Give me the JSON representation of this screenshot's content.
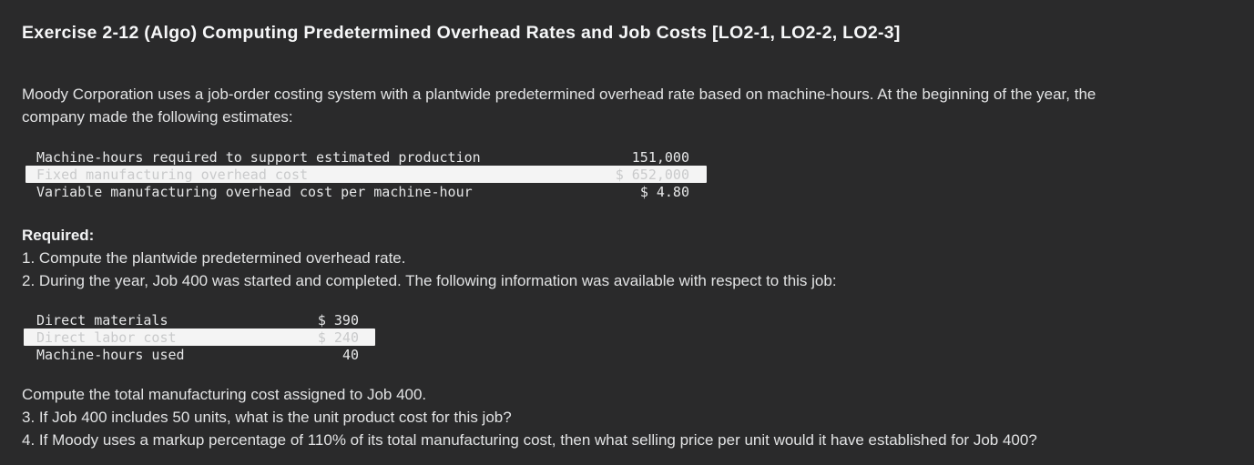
{
  "title": "Exercise 2-12 (Algo) Computing Predetermined Overhead Rates and Job Costs [LO2-1, LO2-2, LO2-3]",
  "intro": "Moody Corporation uses a job-order costing system with a plantwide predetermined overhead rate based on machine-hours. At the beginning of the year, the company made the following estimates:",
  "estimates_table": {
    "rows": [
      {
        "label": "Machine-hours required to support estimated production",
        "value": "151,000",
        "highlighted": false
      },
      {
        "label": "Fixed manufacturing overhead cost",
        "value": "$ 652,000",
        "highlighted": true
      },
      {
        "label": "Variable manufacturing overhead cost per machine-hour",
        "value": "$ 4.80",
        "highlighted": false
      }
    ]
  },
  "required": {
    "heading": "Required:",
    "items": [
      "1. Compute the plantwide predetermined overhead rate.",
      "2. During the year, Job 400 was started and completed. The following information was available with respect to this job:"
    ]
  },
  "job_table": {
    "rows": [
      {
        "label": "Direct materials",
        "value": "$ 390",
        "highlighted": false
      },
      {
        "label": "Direct labor cost",
        "value": "$ 240",
        "highlighted": true
      },
      {
        "label": "Machine-hours used",
        "value": "40",
        "highlighted": false
      }
    ]
  },
  "questions": [
    "Compute the total manufacturing cost assigned to Job 400.",
    "3. If Job 400 includes 50 units, what is the unit product cost for this job?",
    "4. If Moody uses a markup percentage of 110% of its total manufacturing cost, then what selling price per unit would it have established for Job 400?"
  ],
  "colors": {
    "background": "#2a2a2b",
    "body_text": "#e2e3e4",
    "title_text": "#f6f7f8",
    "highlight_background": "#f4f4f4",
    "highlight_text": "#c9cacb"
  }
}
